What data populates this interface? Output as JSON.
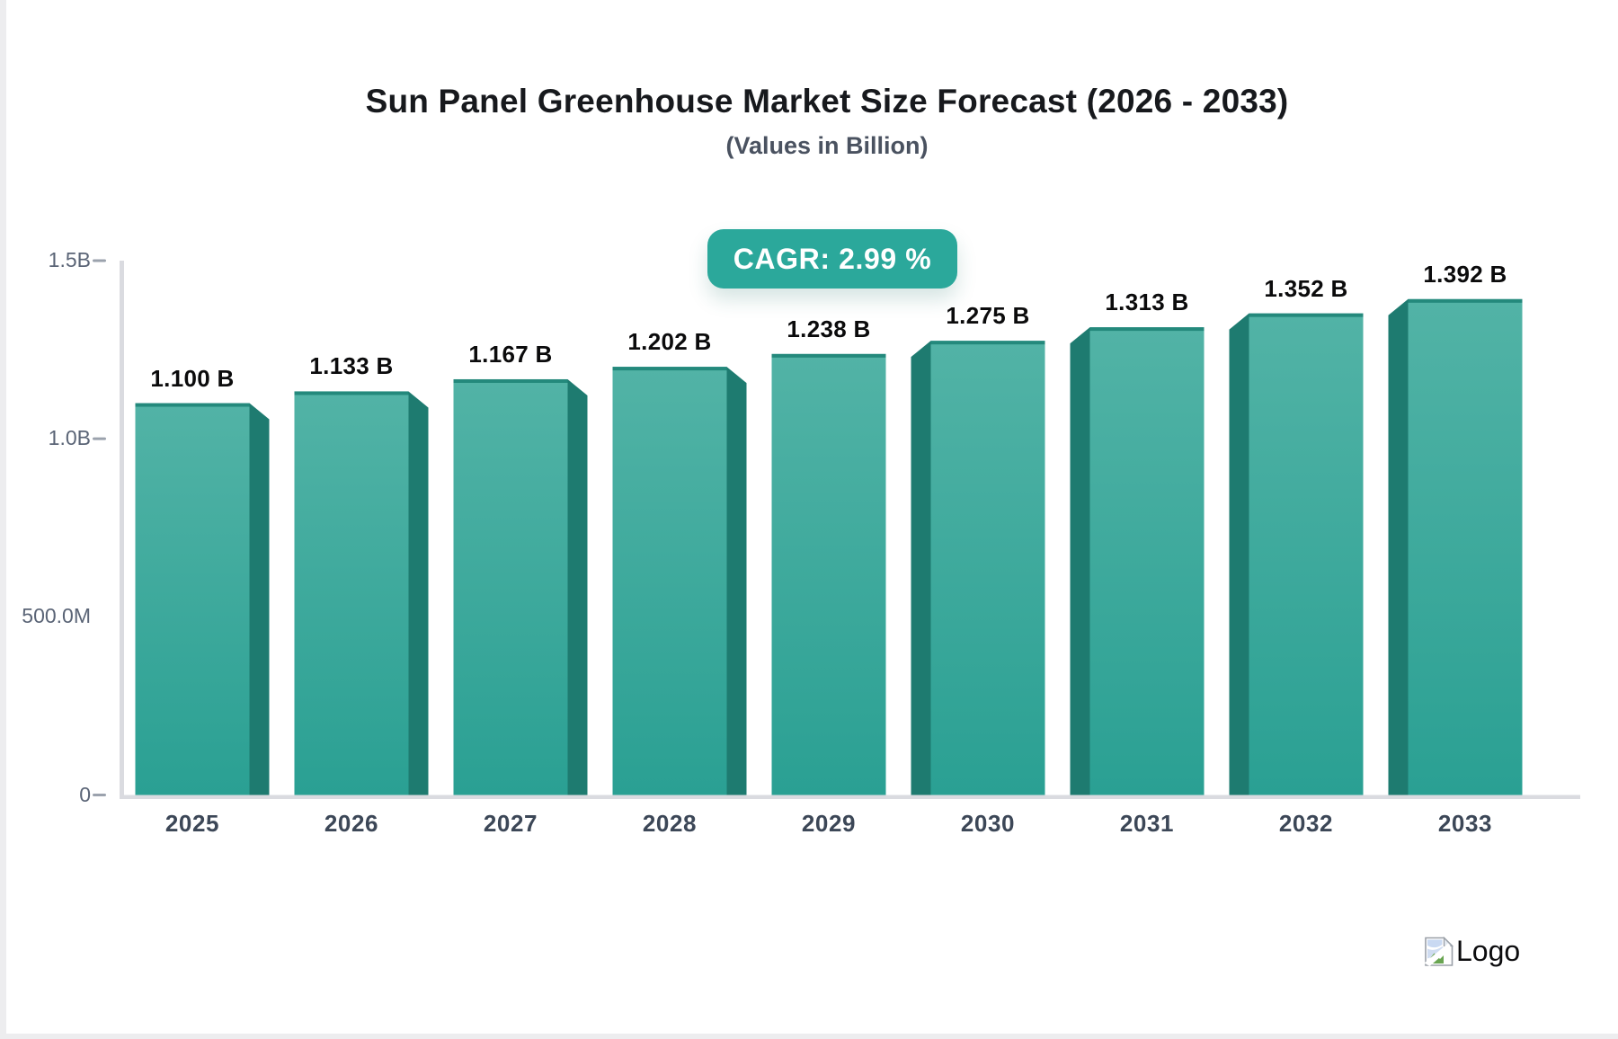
{
  "header": {
    "title": "Sun Panel Greenhouse Market Size Forecast (2026 - 2033)",
    "subtitle": "(Values in Billion)"
  },
  "badge": {
    "label": "CAGR: 2.99 %"
  },
  "chart_data": {
    "type": "bar",
    "title": "Sun Panel Greenhouse Market Size Forecast (2026 - 2033)",
    "subtitle": "(Values in Billion)",
    "unit": "Billion",
    "cagr": "2.99 %",
    "categories": [
      "2025",
      "2026",
      "2027",
      "2028",
      "2029",
      "2030",
      "2031",
      "2032",
      "2033"
    ],
    "values": [
      1.1,
      1.133,
      1.167,
      1.202,
      1.238,
      1.275,
      1.313,
      1.352,
      1.392
    ],
    "value_labels": [
      "1.100 B",
      "1.133 B",
      "1.167 B",
      "1.202 B",
      "1.238 B",
      "1.275 B",
      "1.313 B",
      "1.352 B",
      "1.392 B"
    ],
    "xlabel": "",
    "ylabel": "",
    "ylim": [
      0,
      1.5
    ],
    "y_ticks": [
      {
        "value": 1.5,
        "label": "1.5B",
        "tick": true
      },
      {
        "value": 1.0,
        "label": "1.0B",
        "tick": true
      },
      {
        "value": 0.5,
        "label": "500.0M",
        "tick": false
      },
      {
        "value": 0.0,
        "label": "0",
        "tick": true
      }
    ],
    "grid": false,
    "legend": false,
    "colors": {
      "bar_top": "#52b3a6",
      "bar_bottom": "#2aa093",
      "bar_top_edge": "#1f8478",
      "bar_side": "#1e7b70",
      "axis_line": "#dadbe0",
      "tick_dash": "#9ba2ad",
      "badge_bg": "#2ba89b"
    }
  },
  "footer": {
    "logo_alt": "Logo"
  }
}
